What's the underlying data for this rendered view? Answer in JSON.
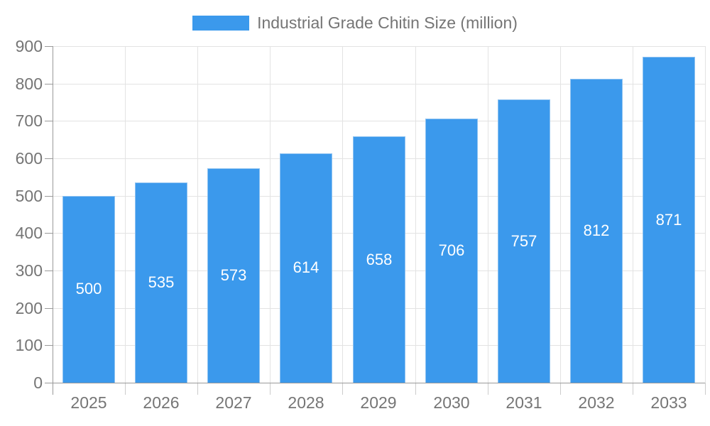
{
  "legend": {
    "label": "Industrial Grade Chitin Size (million)"
  },
  "colors": {
    "bar_fill": "#3B99EC",
    "bar_edge": "#8FC3F1",
    "bar_label_text": "#FFFFFF",
    "axis_line": "#999999",
    "grid_line": "#E3E3E3",
    "tick_line": "#CCCCCC",
    "axis_text": "#757575"
  },
  "chart_data": {
    "type": "bar",
    "title": "",
    "legend": "Industrial Grade Chitin Size (million)",
    "legend_position": "top",
    "categories": [
      "2025",
      "2026",
      "2027",
      "2028",
      "2029",
      "2030",
      "2031",
      "2032",
      "2033"
    ],
    "values": [
      500,
      535,
      573,
      614,
      658,
      706,
      757,
      812,
      871
    ],
    "bar_labels": [
      500,
      535,
      573,
      614,
      658,
      706,
      757,
      812,
      871
    ],
    "xlabel": "",
    "ylabel": "",
    "ylim": [
      0,
      900
    ],
    "ytick_step": 100,
    "yticks": [
      0,
      100,
      200,
      300,
      400,
      500,
      600,
      700,
      800,
      900
    ],
    "grid": true
  }
}
